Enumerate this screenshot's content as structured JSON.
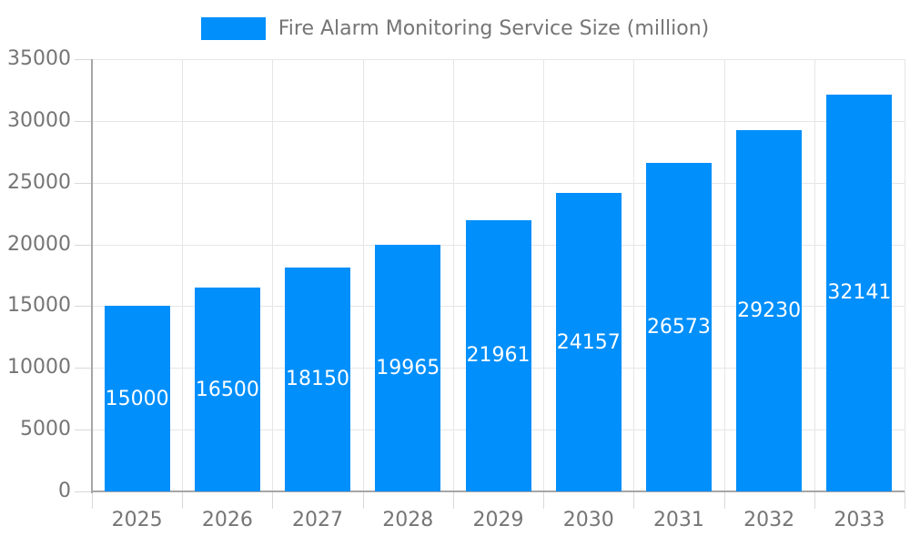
{
  "chart_data": {
    "type": "bar",
    "title": "Fire Alarm Monitoring Service Size (million)",
    "legend": {
      "position": "top",
      "label": "Fire Alarm Monitoring Service Size (million)"
    },
    "categories": [
      "2025",
      "2026",
      "2027",
      "2028",
      "2029",
      "2030",
      "2031",
      "2032",
      "2033"
    ],
    "values": [
      15000,
      16500,
      18150,
      19965,
      21961,
      24157,
      26573,
      29230,
      32141
    ],
    "xlabel": "",
    "ylabel": "",
    "ylim": [
      0,
      35000
    ],
    "yticks": [
      0,
      5000,
      10000,
      15000,
      20000,
      25000,
      30000,
      35000
    ],
    "grid": true,
    "value_labels": "inside-center",
    "colors": {
      "bar": "#008FFB",
      "grid": "#e6e6e6",
      "tick": "#d9d9d9",
      "axis": "#a6a6a6",
      "text": "#757575",
      "value_label": "#ffffff",
      "background": "#ffffff"
    }
  }
}
